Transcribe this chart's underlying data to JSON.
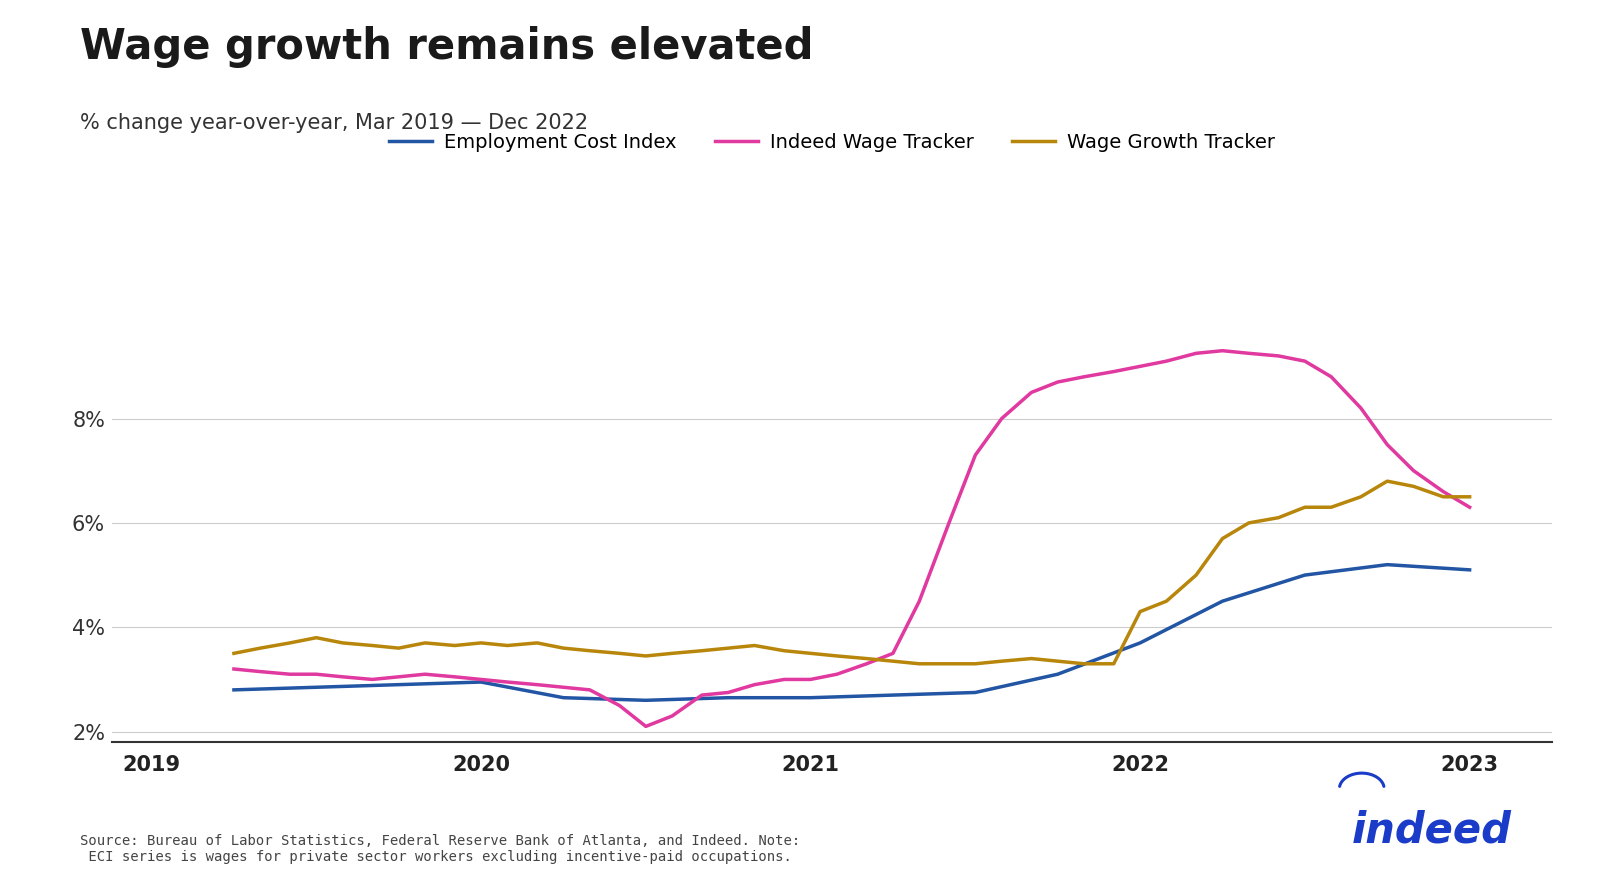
{
  "title": "Wage growth remains elevated",
  "subtitle": "% change year-over-year, Mar 2019 — Dec 2022",
  "title_fontsize": 30,
  "subtitle_fontsize": 15,
  "background_color": "#ffffff",
  "source_text": "Source: Bureau of Labor Statistics, Federal Reserve Bank of Atlanta, and Indeed. Note:\n ECI series is wages for private sector workers excluding incentive-paid occupations.",
  "legend_labels": [
    "Employment Cost Index",
    "Indeed Wage Tracker",
    "Wage Growth Tracker"
  ],
  "line_colors": [
    "#2255a4",
    "#e0399f",
    "#b8860b"
  ],
  "ylim": [
    1.8,
    10.5
  ],
  "yticks": [
    2,
    4,
    6,
    8
  ],
  "xtick_labels": [
    "2019",
    "2020",
    "2021",
    "2022",
    "2023"
  ],
  "indeed_logo_color": "#1a3cc8",
  "eci_x": [
    2019.25,
    2019.5,
    2019.75,
    2020.0,
    2020.25,
    2020.5,
    2020.75,
    2021.0,
    2021.25,
    2021.5,
    2021.75,
    2022.0,
    2022.25,
    2022.5,
    2022.75,
    2023.0
  ],
  "eci_y": [
    2.8,
    2.85,
    2.9,
    2.95,
    2.65,
    2.6,
    2.65,
    2.65,
    2.7,
    2.75,
    3.1,
    3.7,
    4.5,
    5.0,
    5.2,
    5.1
  ],
  "indeed_x": [
    2019.25,
    2019.33,
    2019.42,
    2019.5,
    2019.58,
    2019.67,
    2019.75,
    2019.83,
    2019.92,
    2020.0,
    2020.08,
    2020.17,
    2020.25,
    2020.33,
    2020.42,
    2020.5,
    2020.58,
    2020.67,
    2020.75,
    2020.83,
    2020.92,
    2021.0,
    2021.08,
    2021.17,
    2021.25,
    2021.33,
    2021.42,
    2021.5,
    2021.58,
    2021.67,
    2021.75,
    2021.83,
    2021.92,
    2022.0,
    2022.08,
    2022.17,
    2022.25,
    2022.33,
    2022.42,
    2022.5,
    2022.58,
    2022.67,
    2022.75,
    2022.83,
    2022.92,
    2023.0
  ],
  "indeed_y": [
    3.2,
    3.15,
    3.1,
    3.1,
    3.05,
    3.0,
    3.05,
    3.1,
    3.05,
    3.0,
    2.95,
    2.9,
    2.85,
    2.8,
    2.5,
    2.1,
    2.3,
    2.7,
    2.75,
    2.9,
    3.0,
    3.0,
    3.1,
    3.3,
    3.5,
    4.5,
    6.0,
    7.3,
    8.0,
    8.5,
    8.7,
    8.8,
    8.9,
    9.0,
    9.1,
    9.25,
    9.3,
    9.25,
    9.2,
    9.1,
    8.8,
    8.2,
    7.5,
    7.0,
    6.6,
    6.3
  ],
  "wage_x": [
    2019.25,
    2019.33,
    2019.42,
    2019.5,
    2019.58,
    2019.67,
    2019.75,
    2019.83,
    2019.92,
    2020.0,
    2020.08,
    2020.17,
    2020.25,
    2020.33,
    2020.42,
    2020.5,
    2020.58,
    2020.67,
    2020.75,
    2020.83,
    2020.92,
    2021.0,
    2021.08,
    2021.17,
    2021.25,
    2021.33,
    2021.42,
    2021.5,
    2021.58,
    2021.67,
    2021.75,
    2021.83,
    2021.92,
    2022.0,
    2022.08,
    2022.17,
    2022.25,
    2022.33,
    2022.42,
    2022.5,
    2022.58,
    2022.67,
    2022.75,
    2022.83,
    2022.92,
    2023.0
  ],
  "wage_y": [
    3.5,
    3.6,
    3.7,
    3.8,
    3.7,
    3.65,
    3.6,
    3.7,
    3.65,
    3.7,
    3.65,
    3.7,
    3.6,
    3.55,
    3.5,
    3.45,
    3.5,
    3.55,
    3.6,
    3.65,
    3.55,
    3.5,
    3.45,
    3.4,
    3.35,
    3.3,
    3.3,
    3.3,
    3.35,
    3.4,
    3.35,
    3.3,
    3.3,
    4.3,
    4.5,
    5.0,
    5.7,
    6.0,
    6.1,
    6.3,
    6.3,
    6.5,
    6.8,
    6.7,
    6.5,
    6.5
  ]
}
